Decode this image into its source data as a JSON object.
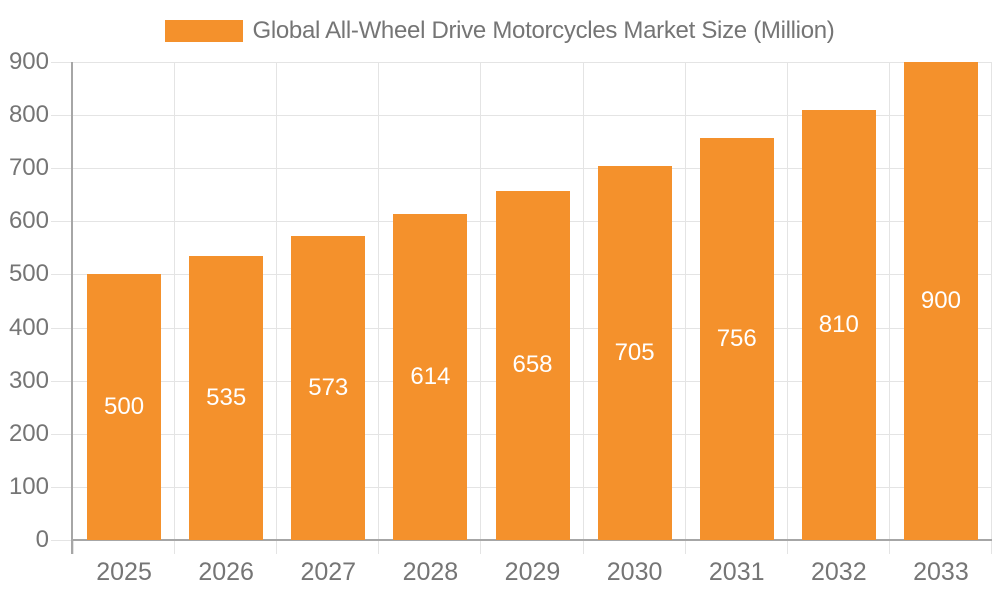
{
  "chart_data": {
    "type": "bar",
    "title": "Global All-Wheel Drive Motorcycles Market Size (Million)",
    "categories": [
      "2025",
      "2026",
      "2027",
      "2028",
      "2029",
      "2030",
      "2031",
      "2032",
      "2033"
    ],
    "values": [
      500,
      535,
      573,
      614,
      658,
      705,
      756,
      810,
      900
    ],
    "xlabel": "",
    "ylabel": "",
    "ylim": [
      0,
      900
    ],
    "yticks": [
      0,
      100,
      200,
      300,
      400,
      500,
      600,
      700,
      800,
      900
    ],
    "grid": true,
    "legend_position": "top-center",
    "legend_entries": [
      "Global All-Wheel Drive Motorcycles Market Size (Million)"
    ],
    "colors": {
      "bar": "#F4912C",
      "grid_line": "#E4E4E4",
      "axis_line": "#A6A6A6",
      "axis_text": "#757575",
      "value_label_text": "#FFFFFF",
      "background": "#FFFFFF"
    }
  }
}
